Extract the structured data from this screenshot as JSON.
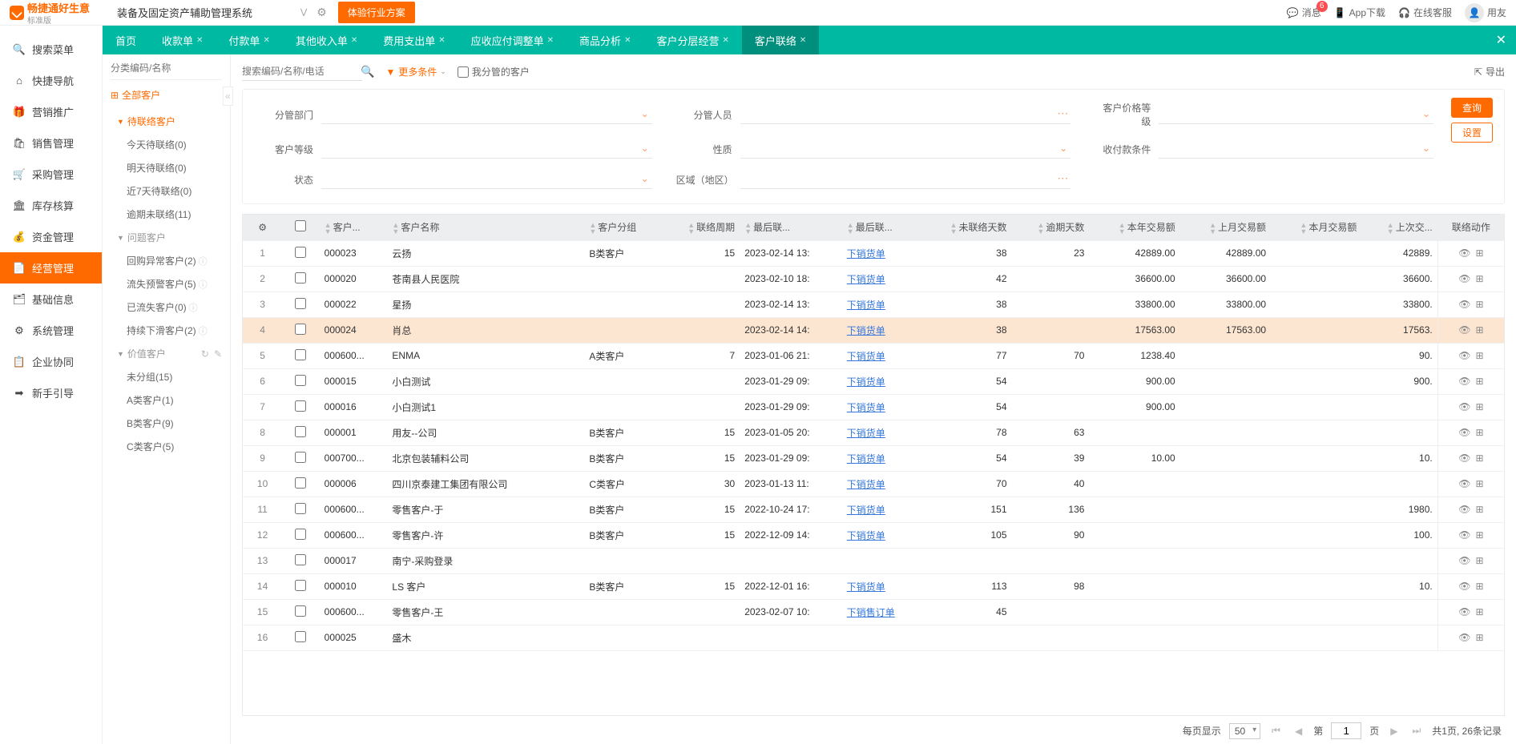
{
  "header": {
    "product_name": "畅捷通好生意",
    "edition": "标准版",
    "system_title": "装备及固定资产辅助管理系统",
    "industry_btn": "体验行业方案",
    "msg_label": "消息",
    "msg_badge": "6",
    "app_label": "App下载",
    "service_label": "在线客服",
    "user_name": "用友"
  },
  "left_nav": [
    {
      "icon": "🔍",
      "label": "搜索菜单"
    },
    {
      "icon": "⌂",
      "label": "快捷导航"
    },
    {
      "icon": "🎁",
      "label": "营销推广"
    },
    {
      "icon": "🛍",
      "label": "销售管理"
    },
    {
      "icon": "🛒",
      "label": "采购管理"
    },
    {
      "icon": "🏛",
      "label": "库存核算"
    },
    {
      "icon": "💰",
      "label": "资金管理"
    },
    {
      "icon": "📄",
      "label": "经营管理"
    },
    {
      "icon": "🗂",
      "label": "基础信息"
    },
    {
      "icon": "⚙",
      "label": "系统管理"
    },
    {
      "icon": "📋",
      "label": "企业协同"
    },
    {
      "icon": "➡",
      "label": "新手引导"
    }
  ],
  "left_nav_active": 7,
  "tabs": [
    {
      "label": "首页",
      "closable": false
    },
    {
      "label": "收款单",
      "closable": true
    },
    {
      "label": "付款单",
      "closable": true
    },
    {
      "label": "其他收入单",
      "closable": true
    },
    {
      "label": "费用支出单",
      "closable": true
    },
    {
      "label": "应收应付调整单",
      "closable": true
    },
    {
      "label": "商品分析",
      "closable": true
    },
    {
      "label": "客户分层经营",
      "closable": true
    },
    {
      "label": "客户联络",
      "closable": true
    }
  ],
  "tabs_active": 8,
  "cat": {
    "search_placeholder": "分类编码/名称",
    "root": "全部客户",
    "group1_title": "待联络客户",
    "group1_items": [
      "今天待联络(0)",
      "明天待联络(0)",
      "近7天待联络(0)",
      "逾期未联络(11)"
    ],
    "group2_title": "问题客户",
    "group2_items": [
      {
        "label": "回购异常客户(2)",
        "help": true
      },
      {
        "label": "流失预警客户(5)",
        "help": true
      },
      {
        "label": "已流失客户(0)",
        "help": true
      },
      {
        "label": "持续下滑客户(2)",
        "help": true
      }
    ],
    "group3_title": "价值客户",
    "group3_items": [
      "未分组(15)",
      "A类客户(1)",
      "B类客户(9)",
      "C类客户(5)"
    ]
  },
  "search": {
    "main_placeholder": "搜索编码/名称/电话",
    "more_cond": "更多条件",
    "my_customers": "我分管的客户",
    "export": "导出"
  },
  "filters": {
    "dept_label": "分管部门",
    "person_label": "分管人员",
    "price_label": "客户价格等级",
    "level_label": "客户等级",
    "nature_label": "性质",
    "payment_label": "收付款条件",
    "status_label": "状态",
    "region_label": "区域（地区）",
    "query_btn": "查询",
    "setting_btn": "设置"
  },
  "table": {
    "columns": {
      "code": "客户...",
      "name": "客户名称",
      "group": "客户分组",
      "cycle": "联络周期",
      "last_time": "最后联...",
      "last_item": "最后联...",
      "days_no": "未联络天数",
      "overdue": "逾期天数",
      "year_amt": "本年交易额",
      "last_month_amt": "上月交易额",
      "this_month_amt": "本月交易额",
      "last_trans": "上次交...",
      "action": "联络动作"
    },
    "link_text": "下销货单",
    "link_text_alt": "下销售订单",
    "rows": [
      {
        "idx": 1,
        "code": "000023",
        "name": "云扬",
        "group": "B类客户",
        "cycle": "15",
        "last_time": "2023-02-14 13:",
        "link": "下销货单",
        "days_no": "38",
        "overdue": "23",
        "year": "42889.00",
        "lastm": "42889.00",
        "thism": "",
        "lastt": "42889."
      },
      {
        "idx": 2,
        "code": "000020",
        "name": "苍南县人民医院",
        "group": "",
        "cycle": "",
        "last_time": "2023-02-10 18:",
        "link": "下销货单",
        "days_no": "42",
        "overdue": "",
        "year": "36600.00",
        "lastm": "36600.00",
        "thism": "",
        "lastt": "36600."
      },
      {
        "idx": 3,
        "code": "000022",
        "name": "星扬",
        "group": "",
        "cycle": "",
        "last_time": "2023-02-14 13:",
        "link": "下销货单",
        "days_no": "38",
        "overdue": "",
        "year": "33800.00",
        "lastm": "33800.00",
        "thism": "",
        "lastt": "33800."
      },
      {
        "idx": 4,
        "hl": true,
        "code": "000024",
        "name": "肖总",
        "group": "",
        "cycle": "",
        "last_time": "2023-02-14 14:",
        "link": "下销货单",
        "days_no": "38",
        "overdue": "",
        "year": "17563.00",
        "lastm": "17563.00",
        "thism": "",
        "lastt": "17563."
      },
      {
        "idx": 5,
        "code": "000600...",
        "name": "ENMA",
        "group": "A类客户",
        "cycle": "7",
        "last_time": "2023-01-06 21:",
        "link": "下销货单",
        "days_no": "77",
        "overdue": "70",
        "year": "1238.40",
        "lastm": "",
        "thism": "",
        "lastt": "90."
      },
      {
        "idx": 6,
        "code": "000015",
        "name": "小白测试",
        "group": "",
        "cycle": "",
        "last_time": "2023-01-29 09:",
        "link": "下销货单",
        "days_no": "54",
        "overdue": "",
        "year": "900.00",
        "lastm": "",
        "thism": "",
        "lastt": "900."
      },
      {
        "idx": 7,
        "code": "000016",
        "name": "小白测试1",
        "group": "",
        "cycle": "",
        "last_time": "2023-01-29 09:",
        "link": "下销货单",
        "days_no": "54",
        "overdue": "",
        "year": "900.00",
        "lastm": "",
        "thism": "",
        "lastt": ""
      },
      {
        "idx": 8,
        "code": "000001",
        "name": "用友--公司",
        "group": "B类客户",
        "cycle": "15",
        "last_time": "2023-01-05 20:",
        "link": "下销货单",
        "days_no": "78",
        "overdue": "63",
        "year": "",
        "lastm": "",
        "thism": "",
        "lastt": ""
      },
      {
        "idx": 9,
        "code": "000700...",
        "name": "北京包装辅料公司",
        "group": "B类客户",
        "cycle": "15",
        "last_time": "2023-01-29 09:",
        "link": "下销货单",
        "days_no": "54",
        "overdue": "39",
        "year": "10.00",
        "lastm": "",
        "thism": "",
        "lastt": "10."
      },
      {
        "idx": 10,
        "code": "000006",
        "name": "四川京泰建工集团有限公司",
        "group": "C类客户",
        "cycle": "30",
        "last_time": "2023-01-13 11:",
        "link": "下销货单",
        "days_no": "70",
        "overdue": "40",
        "year": "",
        "lastm": "",
        "thism": "",
        "lastt": ""
      },
      {
        "idx": 11,
        "code": "000600...",
        "name": "零售客户-于",
        "group": "B类客户",
        "cycle": "15",
        "last_time": "2022-10-24 17:",
        "link": "下销货单",
        "days_no": "151",
        "overdue": "136",
        "year": "",
        "lastm": "",
        "thism": "",
        "lastt": "1980."
      },
      {
        "idx": 12,
        "code": "000600...",
        "name": "零售客户-许",
        "group": "B类客户",
        "cycle": "15",
        "last_time": "2022-12-09 14:",
        "link": "下销货单",
        "days_no": "105",
        "overdue": "90",
        "year": "",
        "lastm": "",
        "thism": "",
        "lastt": "100."
      },
      {
        "idx": 13,
        "code": "000017",
        "name": "南宁-采购登录",
        "group": "",
        "cycle": "",
        "last_time": "",
        "link": "",
        "days_no": "",
        "overdue": "",
        "year": "",
        "lastm": "",
        "thism": "",
        "lastt": ""
      },
      {
        "idx": 14,
        "code": "000010",
        "name": "LS 客户",
        "group": "B类客户",
        "cycle": "15",
        "last_time": "2022-12-01 16:",
        "link": "下销货单",
        "days_no": "113",
        "overdue": "98",
        "year": "",
        "lastm": "",
        "thism": "",
        "lastt": "10."
      },
      {
        "idx": 15,
        "code": "000600...",
        "name": "零售客户-王",
        "group": "",
        "cycle": "",
        "last_time": "2023-02-07 10:",
        "link": "下销售订单",
        "days_no": "45",
        "overdue": "",
        "year": "",
        "lastm": "",
        "thism": "",
        "lastt": ""
      },
      {
        "idx": 16,
        "code": "000025",
        "name": "盛木",
        "group": "",
        "cycle": "",
        "last_time": "",
        "link": "",
        "days_no": "",
        "overdue": "",
        "year": "",
        "lastm": "",
        "thism": "",
        "lastt": ""
      }
    ]
  },
  "pagination": {
    "per_page_label": "每页显示",
    "per_page_value": "50",
    "page_label_pre": "第",
    "page_value": "1",
    "page_label_post": "页",
    "summary": "共1页, 26条记录"
  }
}
